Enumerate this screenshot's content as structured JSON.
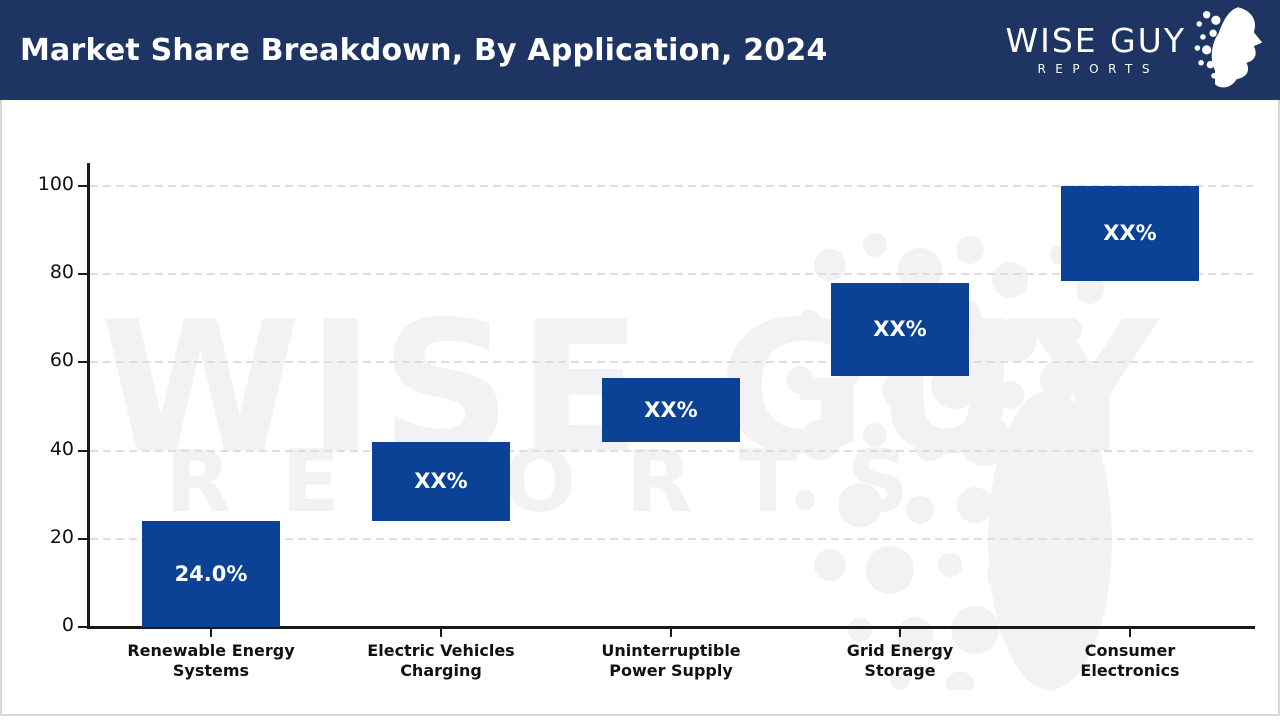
{
  "header": {
    "title": "Market Share Breakdown, By Application, 2024",
    "logo": {
      "line1": "WISE GUY",
      "line2": "REPORTS"
    }
  },
  "watermark": {
    "line1": "WISE GUY",
    "line2": "REPORTS"
  },
  "colors": {
    "header_bg": "#1e3563",
    "bar": "#0b4296",
    "grid": "#dedede",
    "axis": "#1a1a1a",
    "tick_label": "#111111",
    "bar_label": "#ffffff",
    "watermark": "#f2f2f4",
    "frame_border": "#d8d8d8"
  },
  "chart_data": {
    "type": "bar",
    "subtype": "waterfall",
    "title": "Market Share Breakdown, By Application, 2024",
    "categories": [
      {
        "lines": [
          "Renewable Energy",
          "Systems"
        ]
      },
      {
        "lines": [
          "Electric Vehicles",
          "Charging"
        ]
      },
      {
        "lines": [
          "Uninterruptible",
          "Power Supply"
        ]
      },
      {
        "lines": [
          "Grid Energy",
          "Storage"
        ]
      },
      {
        "lines": [
          "Consumer",
          "Electronics"
        ]
      }
    ],
    "segments": [
      {
        "start": 0,
        "end": 24,
        "label": "24.0%"
      },
      {
        "start": 24,
        "end": 42,
        "label": "XX%"
      },
      {
        "start": 42,
        "end": 56.5,
        "label": "XX%"
      },
      {
        "start": 57,
        "end": 78,
        "label": "XX%"
      },
      {
        "start": 78.5,
        "end": 100,
        "label": "XX%"
      }
    ],
    "yticks": [
      0,
      20,
      40,
      60,
      80,
      100
    ],
    "ylim": [
      0,
      105
    ],
    "xlabel": "",
    "ylabel": "",
    "grid": "horizontal-dashed",
    "legend": "none"
  }
}
